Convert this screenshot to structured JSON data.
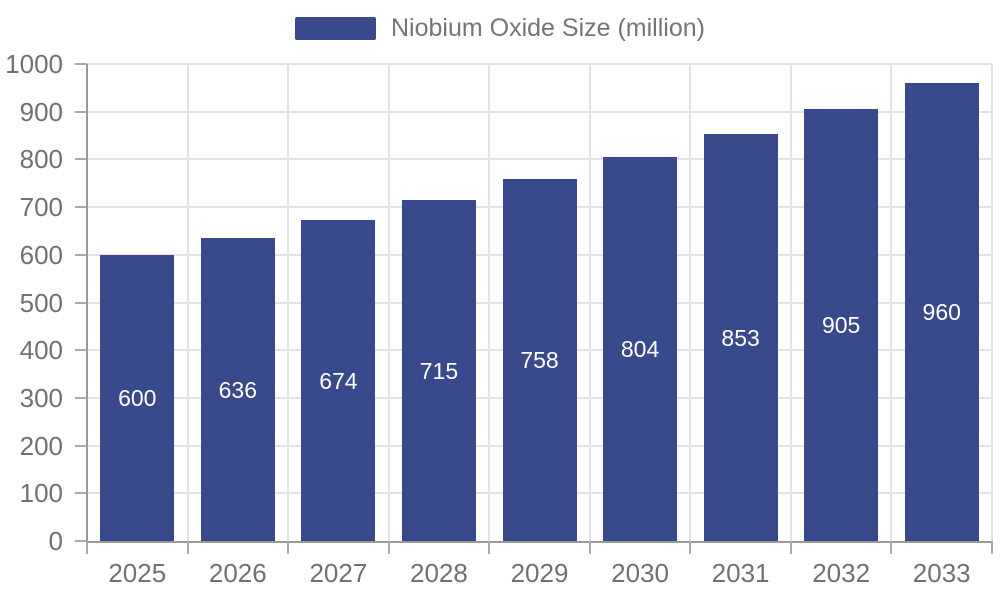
{
  "legend": {
    "label": "Niobium Oxide Size (million)"
  },
  "chart_data": {
    "type": "bar",
    "title": "",
    "categories": [
      "2025",
      "2026",
      "2027",
      "2028",
      "2029",
      "2030",
      "2031",
      "2032",
      "2033"
    ],
    "series": [
      {
        "name": "Niobium Oxide Size (million)",
        "values": [
          600,
          636,
          674,
          715,
          758,
          804,
          853,
          905,
          960
        ]
      }
    ],
    "value_labels_shown": true,
    "xlabel": "",
    "ylabel": "",
    "ylim": [
      0,
      1000
    ],
    "yticks": [
      0,
      100,
      200,
      300,
      400,
      500,
      600,
      700,
      800,
      900,
      1000
    ],
    "grid": true,
    "legend_position": "top",
    "colors": {
      "bar": "#384a8b",
      "value_label": "#ffffff",
      "axis": "#999999",
      "gridline": "#e3e3e7",
      "tick": "#aaaaaa",
      "tick_label": "#717171",
      "legend_text": "#757575"
    }
  }
}
